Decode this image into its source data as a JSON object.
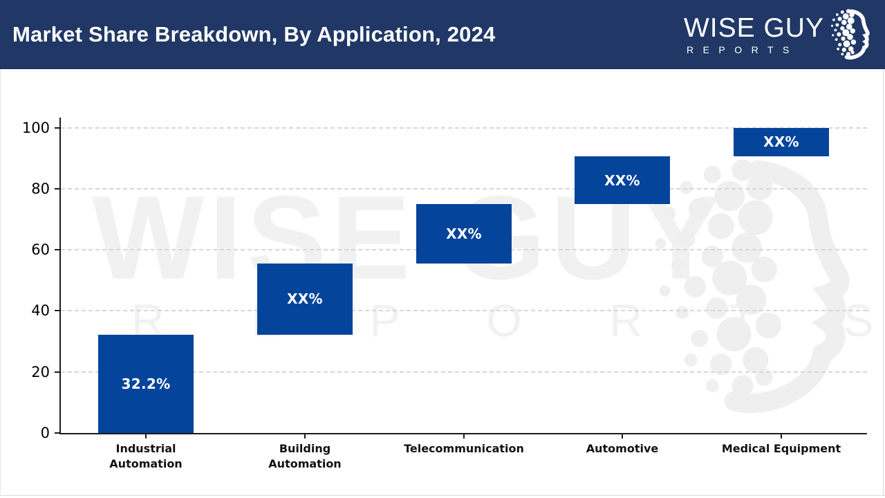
{
  "header": {
    "title": "Market Share Breakdown, By Application, 2024",
    "logo": {
      "wordmark": "WISE GUY",
      "subtitle": "REPORTS"
    }
  },
  "watermark": {
    "line1": "WISE GUY",
    "line2": "R E P O R T S"
  },
  "colors": {
    "header_bg": "#213866",
    "bar": "#05449b",
    "bar_label": "#ffffff",
    "axis": "#1a1a1a",
    "grid": "#d6d6d6",
    "watermark": "#f1f1f1"
  },
  "chart_data": {
    "type": "bar",
    "subtype": "waterfall",
    "title": "Market Share Breakdown, By Application, 2024",
    "categories": [
      "Industrial\nAutomation",
      "Building\nAutomation",
      "Telecommunication",
      "Automotive",
      "Medical Equipment"
    ],
    "segments": [
      {
        "category": "Industrial Automation",
        "start": 0,
        "end": 32.2,
        "value": 32.2,
        "label": "32.2%"
      },
      {
        "category": "Building Automation",
        "start": 32.2,
        "end": 55.5,
        "value": 23.3,
        "label": "XX%"
      },
      {
        "category": "Telecommunication",
        "start": 55.5,
        "end": 75.0,
        "value": 19.5,
        "label": "XX%"
      },
      {
        "category": "Automotive",
        "start": 75.0,
        "end": 90.5,
        "value": 15.5,
        "label": "XX%"
      },
      {
        "category": "Medical Equipment",
        "start": 90.5,
        "end": 100.0,
        "value": 9.5,
        "label": "XX%"
      }
    ],
    "yticks": [
      0,
      20,
      40,
      60,
      80,
      100
    ],
    "ylim": [
      0,
      103
    ],
    "xlabel": "",
    "ylabel": "",
    "grid": "horizontal-dashed",
    "legend_position": "none",
    "bar_color": "#05449b",
    "label_color": "#ffffff"
  }
}
